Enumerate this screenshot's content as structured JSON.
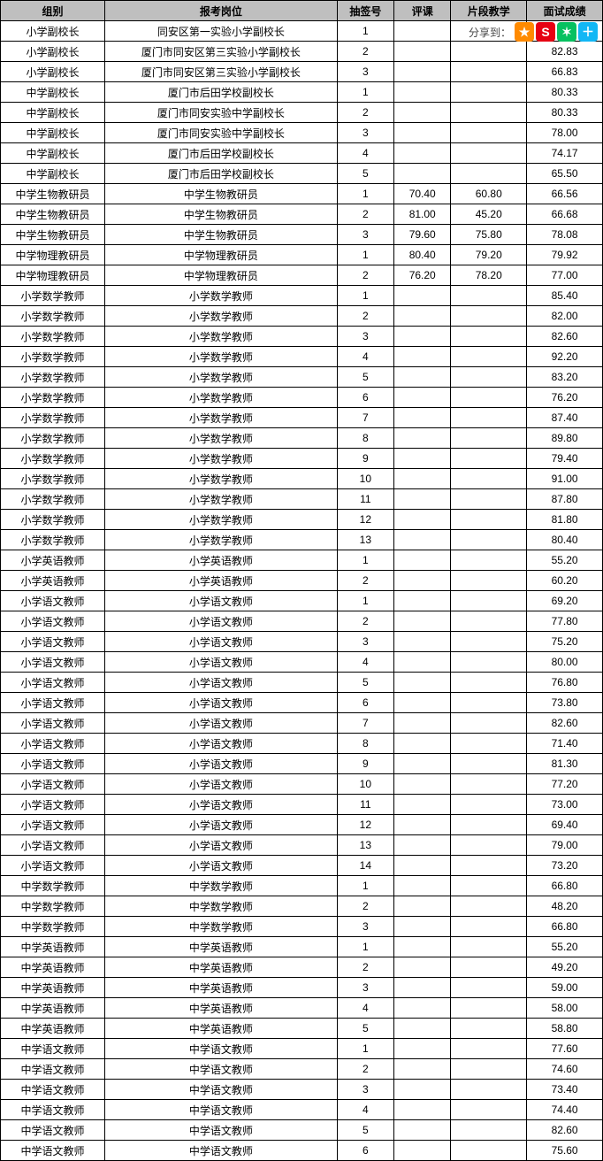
{
  "headers": {
    "group": "组别",
    "position": "报考岗位",
    "draw": "抽签号",
    "pk": "评课",
    "pd": "片段教学",
    "ms": "面试成绩"
  },
  "share": {
    "label": "分享到：",
    "icons": [
      "star-icon",
      "s-icon",
      "wechat-icon",
      "plus-icon"
    ]
  },
  "rows": [
    {
      "group": "小学副校长",
      "position": "同安区第一实验小学副校长",
      "draw": "1",
      "pk": "",
      "pd": "",
      "ms": ""
    },
    {
      "group": "小学副校长",
      "position": "厦门市同安区第三实验小学副校长",
      "draw": "2",
      "pk": "",
      "pd": "",
      "ms": "82.83"
    },
    {
      "group": "小学副校长",
      "position": "厦门市同安区第三实验小学副校长",
      "draw": "3",
      "pk": "",
      "pd": "",
      "ms": "66.83"
    },
    {
      "group": "中学副校长",
      "position": "厦门市后田学校副校长",
      "draw": "1",
      "pk": "",
      "pd": "",
      "ms": "80.33"
    },
    {
      "group": "中学副校长",
      "position": "厦门市同安实验中学副校长",
      "draw": "2",
      "pk": "",
      "pd": "",
      "ms": "80.33"
    },
    {
      "group": "中学副校长",
      "position": "厦门市同安实验中学副校长",
      "draw": "3",
      "pk": "",
      "pd": "",
      "ms": "78.00"
    },
    {
      "group": "中学副校长",
      "position": "厦门市后田学校副校长",
      "draw": "4",
      "pk": "",
      "pd": "",
      "ms": "74.17"
    },
    {
      "group": "中学副校长",
      "position": "厦门市后田学校副校长",
      "draw": "5",
      "pk": "",
      "pd": "",
      "ms": "65.50"
    },
    {
      "group": "中学生物教研员",
      "position": "中学生物教研员",
      "draw": "1",
      "pk": "70.40",
      "pd": "60.80",
      "ms": "66.56"
    },
    {
      "group": "中学生物教研员",
      "position": "中学生物教研员",
      "draw": "2",
      "pk": "81.00",
      "pd": "45.20",
      "ms": "66.68"
    },
    {
      "group": "中学生物教研员",
      "position": "中学生物教研员",
      "draw": "3",
      "pk": "79.60",
      "pd": "75.80",
      "ms": "78.08"
    },
    {
      "group": "中学物理教研员",
      "position": "中学物理教研员",
      "draw": "1",
      "pk": "80.40",
      "pd": "79.20",
      "ms": "79.92"
    },
    {
      "group": "中学物理教研员",
      "position": "中学物理教研员",
      "draw": "2",
      "pk": "76.20",
      "pd": "78.20",
      "ms": "77.00"
    },
    {
      "group": "小学数学教师",
      "position": "小学数学教师",
      "draw": "1",
      "pk": "",
      "pd": "",
      "ms": "85.40"
    },
    {
      "group": "小学数学教师",
      "position": "小学数学教师",
      "draw": "2",
      "pk": "",
      "pd": "",
      "ms": "82.00"
    },
    {
      "group": "小学数学教师",
      "position": "小学数学教师",
      "draw": "3",
      "pk": "",
      "pd": "",
      "ms": "82.60"
    },
    {
      "group": "小学数学教师",
      "position": "小学数学教师",
      "draw": "4",
      "pk": "",
      "pd": "",
      "ms": "92.20"
    },
    {
      "group": "小学数学教师",
      "position": "小学数学教师",
      "draw": "5",
      "pk": "",
      "pd": "",
      "ms": "83.20"
    },
    {
      "group": "小学数学教师",
      "position": "小学数学教师",
      "draw": "6",
      "pk": "",
      "pd": "",
      "ms": "76.20"
    },
    {
      "group": "小学数学教师",
      "position": "小学数学教师",
      "draw": "7",
      "pk": "",
      "pd": "",
      "ms": "87.40"
    },
    {
      "group": "小学数学教师",
      "position": "小学数学教师",
      "draw": "8",
      "pk": "",
      "pd": "",
      "ms": "89.80"
    },
    {
      "group": "小学数学教师",
      "position": "小学数学教师",
      "draw": "9",
      "pk": "",
      "pd": "",
      "ms": "79.40"
    },
    {
      "group": "小学数学教师",
      "position": "小学数学教师",
      "draw": "10",
      "pk": "",
      "pd": "",
      "ms": "91.00"
    },
    {
      "group": "小学数学教师",
      "position": "小学数学教师",
      "draw": "11",
      "pk": "",
      "pd": "",
      "ms": "87.80"
    },
    {
      "group": "小学数学教师",
      "position": "小学数学教师",
      "draw": "12",
      "pk": "",
      "pd": "",
      "ms": "81.80"
    },
    {
      "group": "小学数学教师",
      "position": "小学数学教师",
      "draw": "13",
      "pk": "",
      "pd": "",
      "ms": "80.40"
    },
    {
      "group": "小学英语教师",
      "position": "小学英语教师",
      "draw": "1",
      "pk": "",
      "pd": "",
      "ms": "55.20"
    },
    {
      "group": "小学英语教师",
      "position": "小学英语教师",
      "draw": "2",
      "pk": "",
      "pd": "",
      "ms": "60.20"
    },
    {
      "group": "小学语文教师",
      "position": "小学语文教师",
      "draw": "1",
      "pk": "",
      "pd": "",
      "ms": "69.20"
    },
    {
      "group": "小学语文教师",
      "position": "小学语文教师",
      "draw": "2",
      "pk": "",
      "pd": "",
      "ms": "77.80"
    },
    {
      "group": "小学语文教师",
      "position": "小学语文教师",
      "draw": "3",
      "pk": "",
      "pd": "",
      "ms": "75.20"
    },
    {
      "group": "小学语文教师",
      "position": "小学语文教师",
      "draw": "4",
      "pk": "",
      "pd": "",
      "ms": "80.00"
    },
    {
      "group": "小学语文教师",
      "position": "小学语文教师",
      "draw": "5",
      "pk": "",
      "pd": "",
      "ms": "76.80"
    },
    {
      "group": "小学语文教师",
      "position": "小学语文教师",
      "draw": "6",
      "pk": "",
      "pd": "",
      "ms": "73.80"
    },
    {
      "group": "小学语文教师",
      "position": "小学语文教师",
      "draw": "7",
      "pk": "",
      "pd": "",
      "ms": "82.60"
    },
    {
      "group": "小学语文教师",
      "position": "小学语文教师",
      "draw": "8",
      "pk": "",
      "pd": "",
      "ms": "71.40"
    },
    {
      "group": "小学语文教师",
      "position": "小学语文教师",
      "draw": "9",
      "pk": "",
      "pd": "",
      "ms": "81.30"
    },
    {
      "group": "小学语文教师",
      "position": "小学语文教师",
      "draw": "10",
      "pk": "",
      "pd": "",
      "ms": "77.20"
    },
    {
      "group": "小学语文教师",
      "position": "小学语文教师",
      "draw": "11",
      "pk": "",
      "pd": "",
      "ms": "73.00"
    },
    {
      "group": "小学语文教师",
      "position": "小学语文教师",
      "draw": "12",
      "pk": "",
      "pd": "",
      "ms": "69.40"
    },
    {
      "group": "小学语文教师",
      "position": "小学语文教师",
      "draw": "13",
      "pk": "",
      "pd": "",
      "ms": "79.00"
    },
    {
      "group": "小学语文教师",
      "position": "小学语文教师",
      "draw": "14",
      "pk": "",
      "pd": "",
      "ms": "73.20"
    },
    {
      "group": "中学数学教师",
      "position": "中学数学教师",
      "draw": "1",
      "pk": "",
      "pd": "",
      "ms": "66.80"
    },
    {
      "group": "中学数学教师",
      "position": "中学数学教师",
      "draw": "2",
      "pk": "",
      "pd": "",
      "ms": "48.20"
    },
    {
      "group": "中学数学教师",
      "position": "中学数学教师",
      "draw": "3",
      "pk": "",
      "pd": "",
      "ms": "66.80"
    },
    {
      "group": "中学英语教师",
      "position": "中学英语教师",
      "draw": "1",
      "pk": "",
      "pd": "",
      "ms": "55.20"
    },
    {
      "group": "中学英语教师",
      "position": "中学英语教师",
      "draw": "2",
      "pk": "",
      "pd": "",
      "ms": "49.20"
    },
    {
      "group": "中学英语教师",
      "position": "中学英语教师",
      "draw": "3",
      "pk": "",
      "pd": "",
      "ms": "59.00"
    },
    {
      "group": "中学英语教师",
      "position": "中学英语教师",
      "draw": "4",
      "pk": "",
      "pd": "",
      "ms": "58.00"
    },
    {
      "group": "中学英语教师",
      "position": "中学英语教师",
      "draw": "5",
      "pk": "",
      "pd": "",
      "ms": "58.80"
    },
    {
      "group": "中学语文教师",
      "position": "中学语文教师",
      "draw": "1",
      "pk": "",
      "pd": "",
      "ms": "77.60"
    },
    {
      "group": "中学语文教师",
      "position": "中学语文教师",
      "draw": "2",
      "pk": "",
      "pd": "",
      "ms": "74.60"
    },
    {
      "group": "中学语文教师",
      "position": "中学语文教师",
      "draw": "3",
      "pk": "",
      "pd": "",
      "ms": "73.40"
    },
    {
      "group": "中学语文教师",
      "position": "中学语文教师",
      "draw": "4",
      "pk": "",
      "pd": "",
      "ms": "74.40"
    },
    {
      "group": "中学语文教师",
      "position": "中学语文教师",
      "draw": "5",
      "pk": "",
      "pd": "",
      "ms": "82.60"
    },
    {
      "group": "中学语文教师",
      "position": "中学语文教师",
      "draw": "6",
      "pk": "",
      "pd": "",
      "ms": "75.60"
    }
  ]
}
